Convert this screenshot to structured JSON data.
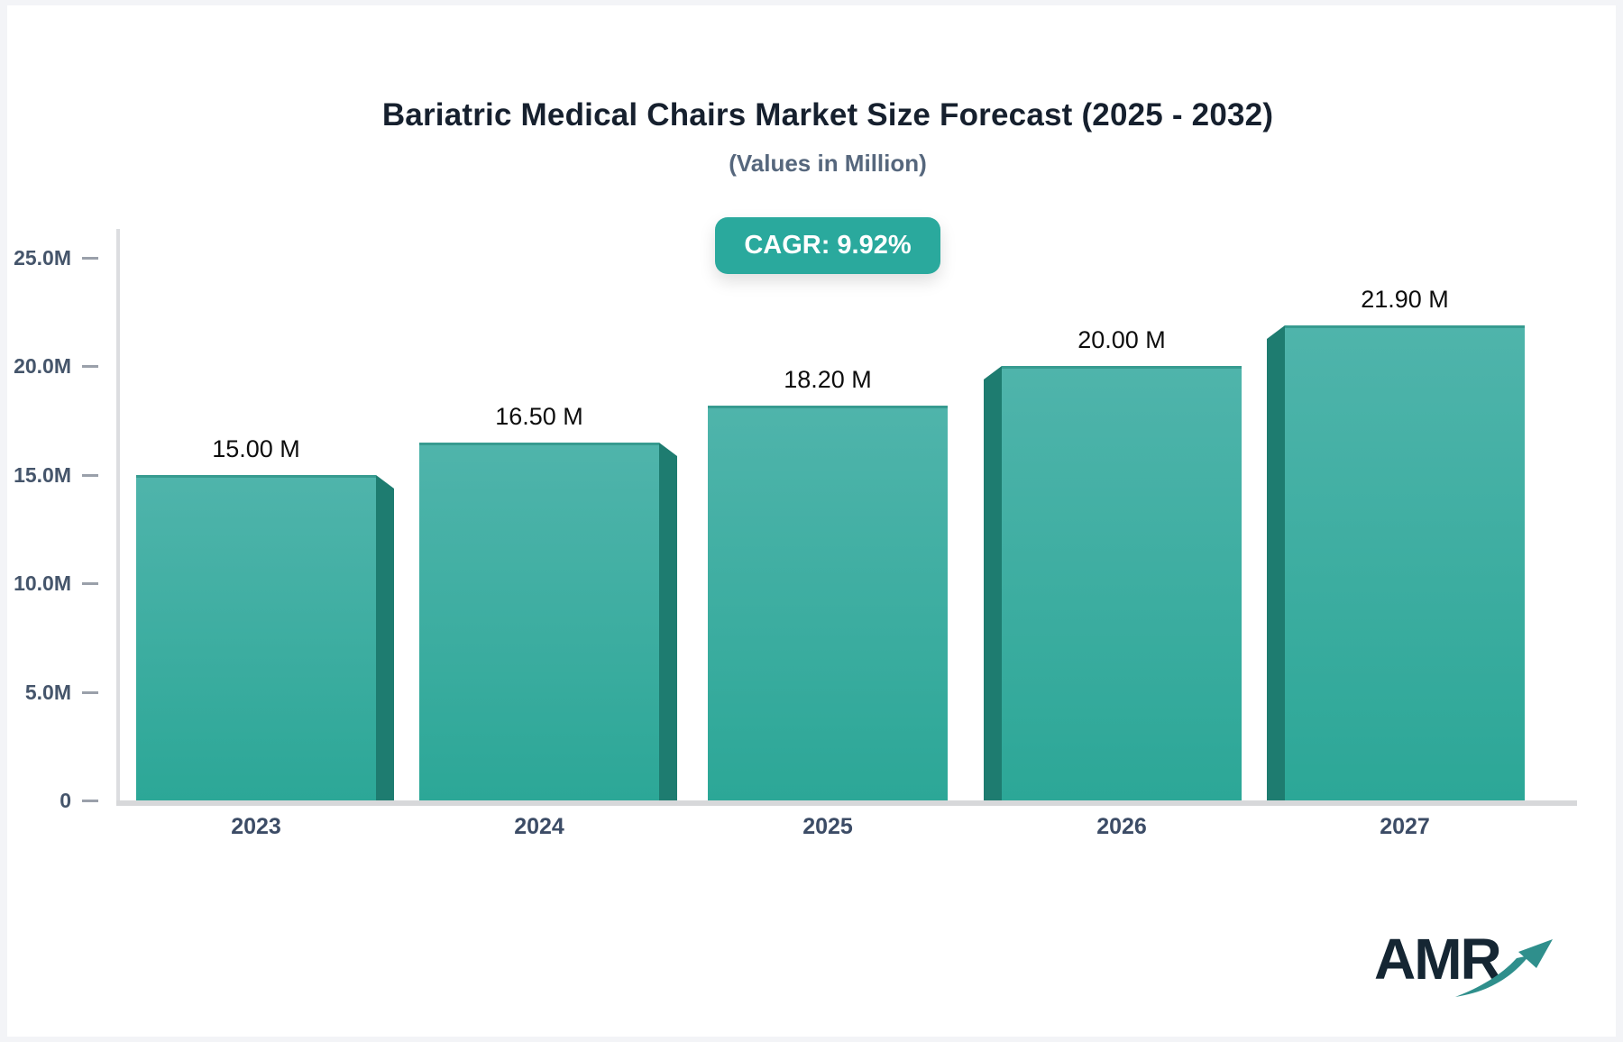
{
  "header": {
    "title": "Bariatric Medical Chairs Market Size Forecast (2025 - 2032)",
    "subtitle": "(Values in Million)",
    "cagr_label": "CAGR: 9.92%"
  },
  "chart_data": {
    "type": "bar",
    "title": "Bariatric Medical Chairs Market Size Forecast (2025 - 2032)",
    "subtitle": "(Values in Million)",
    "categories": [
      "2023",
      "2024",
      "2025",
      "2026",
      "2027"
    ],
    "values": [
      15.0,
      16.5,
      18.2,
      20.0,
      21.9
    ],
    "value_labels": [
      "15.00 M",
      "16.50 M",
      "18.20 M",
      "20.00 M",
      "21.90 M"
    ],
    "cagr": "9.92%",
    "ylim": [
      0,
      25
    ],
    "y_tick_values": [
      0,
      5,
      10,
      15,
      20,
      25
    ],
    "y_tick_labels": [
      "0",
      "5.0M",
      "10.0M",
      "15.0M",
      "20.0M",
      "25.0M"
    ],
    "grid": false,
    "legend": false
  },
  "colors": {
    "bar_gradient_top": "#4fb4ab",
    "bar_gradient_bottom": "#2ca797",
    "bar_side": "#1e7c70",
    "bar_top_edge": "#379b90",
    "badge_bg": "#2aa99d",
    "axis_line": "#dcdde0",
    "baseline": "#d7d8da",
    "tick_dash": "#9aa0aa",
    "y_tick_text": "#45556b",
    "x_tick_text": "#3c4c66",
    "title_text": "#16202e",
    "subtitle_text": "#56677d",
    "logo_navy": "#152633",
    "logo_teal": "#2f8f8c"
  },
  "logo": {
    "text": "AMR"
  }
}
